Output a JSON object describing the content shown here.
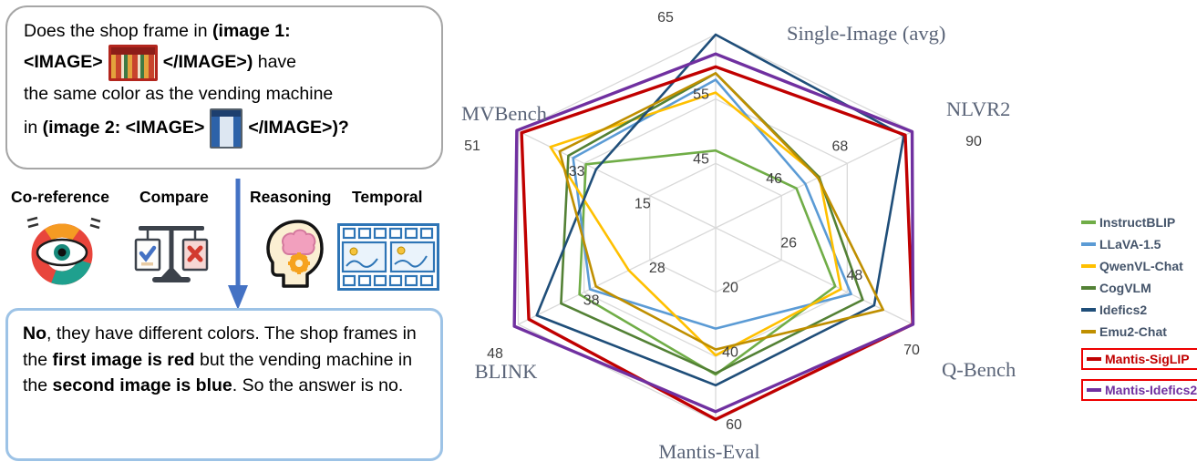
{
  "question": {
    "lines": [
      [
        {
          "t": "Does the shop frame in "
        },
        {
          "t": "(image 1:",
          "b": true
        }
      ],
      [
        {
          "t": "<IMAGE>",
          "b": true
        },
        {
          "icon": "shop-image-thumbnail"
        },
        {
          "t": "</IMAGE>)",
          "b": true
        },
        {
          "t": " have"
        }
      ],
      [
        {
          "t": "the same color as the vending machine"
        }
      ],
      [
        {
          "t": "in "
        },
        {
          "t": "(image 2: <IMAGE>",
          "b": true
        },
        {
          "icon": "vending-machine-thumbnail"
        },
        {
          "t": "</IMAGE>)?",
          "b": true
        }
      ]
    ]
  },
  "categories": [
    {
      "label": "Co-reference",
      "icon": "co-reference-icon"
    },
    {
      "label": "Compare",
      "icon": "compare-icon"
    },
    {
      "label": "Reasoning",
      "icon": "reasoning-icon"
    },
    {
      "label": "Temporal",
      "icon": "temporal-icon"
    }
  ],
  "answer": {
    "runs": [
      {
        "t": "No",
        "b": true
      },
      {
        "t": ", they have different colors. The shop frames in the "
      },
      {
        "t": "first image is red",
        "b": true
      },
      {
        "t": " but the vending machine in the "
      },
      {
        "t": "second image is blue",
        "b": true
      },
      {
        "t": ". So the answer is no."
      }
    ]
  },
  "colors": {
    "question_box_border": "#A6A6A6",
    "answer_box_border": "#9DC3E6",
    "arrow": "#4472C4",
    "axis_label": "#5A6478",
    "tick_label": "#404040",
    "legend_text": "#44546A",
    "highlight_box": "#EE0000",
    "gridline": "#D9D9D9"
  },
  "chart_data": {
    "type": "radar",
    "gridlines": 3,
    "legend_position": "right",
    "axes": [
      {
        "name": "Single-Image (avg)",
        "min": 35,
        "max": 65,
        "ticks": [
          45,
          55,
          65
        ]
      },
      {
        "name": "NLVR2",
        "min": 24,
        "max": 90,
        "ticks": [
          46,
          68,
          90
        ]
      },
      {
        "name": "Q-Bench",
        "min": 4,
        "max": 70,
        "ticks": [
          26,
          48,
          70
        ]
      },
      {
        "name": "Mantis-Eval",
        "min": 0,
        "max": 60,
        "ticks": [
          20,
          40,
          60
        ]
      },
      {
        "name": "BLINK",
        "min": 18,
        "max": 48,
        "ticks": [
          28,
          38,
          48
        ]
      },
      {
        "name": "MVBench",
        "min": -3,
        "max": 51,
        "ticks": [
          15,
          33,
          51
        ]
      }
    ],
    "series": [
      {
        "name": "InstructBLIP",
        "color": "#70AD47",
        "highlight": false,
        "values": [
          47,
          51,
          44,
          45.6,
          38.7,
          32.5
        ]
      },
      {
        "name": "LLaVA-1.5",
        "color": "#5B9BD5",
        "highlight": false,
        "values": [
          58,
          54,
          49.3,
          31.3,
          37.1,
          36.0
        ]
      },
      {
        "name": "QwenVL-Chat",
        "color": "#FFC000",
        "highlight": false,
        "values": [
          56,
          58.7,
          45.9,
          39.6,
          31.2,
          42.2
        ]
      },
      {
        "name": "CogVLM",
        "color": "#538135",
        "highlight": false,
        "values": [
          59,
          58.6,
          53.2,
          45.2,
          41.5,
          37.3
        ]
      },
      {
        "name": "Idefics2",
        "color": "#1F4E79",
        "highlight": false,
        "values": [
          65,
          86.9,
          57.0,
          48.9,
          45.2,
          29.7
        ]
      },
      {
        "name": "Emu2-Chat",
        "color": "#BF8F00",
        "highlight": false,
        "values": [
          59,
          58.2,
          60.0,
          37.8,
          36.2,
          39.7
        ]
      },
      {
        "name": "Mantis-SigLIP",
        "color": "#C00000",
        "highlight": true,
        "values": [
          60,
          87.4,
          69.9,
          59.5,
          46.4,
          50.1
        ]
      },
      {
        "name": "Mantis-Idefics2",
        "color": "#7030A0",
        "highlight": true,
        "values": [
          62,
          89.7,
          70.0,
          57.1,
          49.1,
          51.4
        ]
      }
    ]
  }
}
